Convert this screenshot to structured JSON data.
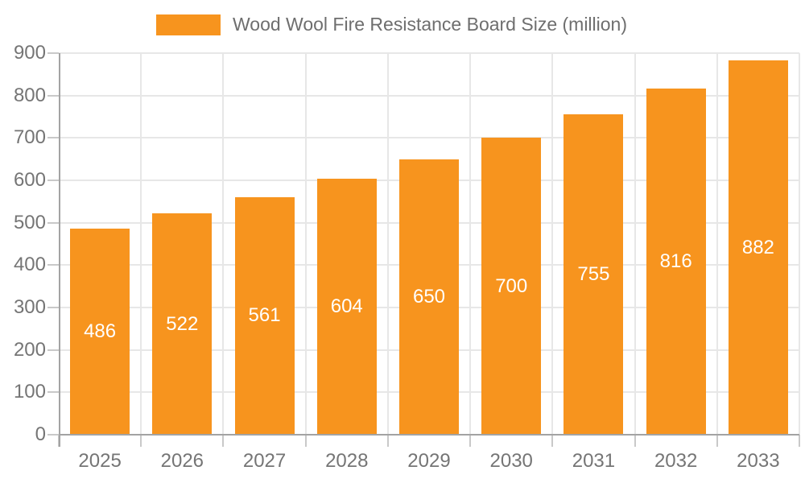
{
  "chart_data": {
    "type": "bar",
    "title": "Wood Wool Fire Resistance Board Size (million)",
    "series_name": "Wood Wool Fire Resistance Board Size (million)",
    "categories": [
      "2025",
      "2026",
      "2027",
      "2028",
      "2029",
      "2030",
      "2031",
      "2032",
      "2033"
    ],
    "values": [
      486,
      522,
      561,
      604,
      650,
      700,
      755,
      816,
      882
    ],
    "xlabel": "",
    "ylabel": "",
    "ylim": [
      0,
      900
    ],
    "ytick_step": 100,
    "yticks": [
      "0",
      "100",
      "200",
      "300",
      "400",
      "500",
      "600",
      "700",
      "800",
      "900"
    ],
    "grid": true,
    "legend_position": "top-center",
    "colors": {
      "bar": "#F7941E",
      "bar_label": "#FFFFFF",
      "axis_line": "#A3A3A3",
      "tick": "#C9C9C9",
      "gridline": "#E7E7E7",
      "axis_text": "#757575",
      "legend_text": "#6E6E6E",
      "background": "#FFFFFF"
    }
  }
}
